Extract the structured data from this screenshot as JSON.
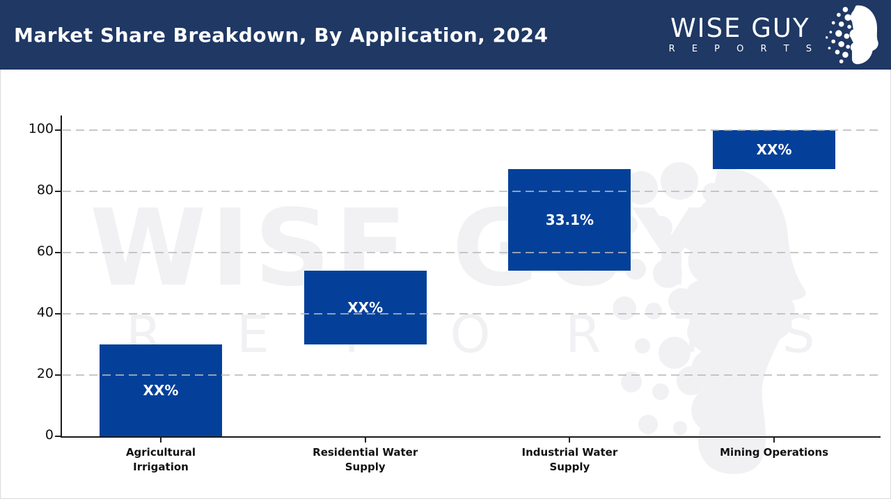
{
  "header": {
    "title": "Market Share Breakdown, By Application, 2024",
    "bg_color": "#1f3864",
    "logo": {
      "line1": "WISE GUY",
      "line2": "R E P O R T S"
    }
  },
  "watermark": {
    "line1": "WISE GUY",
    "line2": "R E P O R T S"
  },
  "chart_data": {
    "type": "bar",
    "subtype": "floating_waterfall_segments",
    "title": "Market Share Breakdown, By Application, 2024",
    "categories": [
      "Agricultural Irrigation",
      "Residential Water Supply",
      "Industrial Water Supply",
      "Mining Operations"
    ],
    "category_label_lines": [
      [
        "Agricultural",
        "Irrigation"
      ],
      [
        "Residential Water",
        "Supply"
      ],
      [
        "Industrial Water",
        "Supply"
      ],
      [
        "Mining Operations"
      ]
    ],
    "segments": [
      {
        "category": "Agricultural Irrigation",
        "start": 0,
        "end": 30,
        "label": "XX%"
      },
      {
        "category": "Residential Water Supply",
        "start": 30,
        "end": 54.2,
        "label": "XX%"
      },
      {
        "category": "Industrial Water Supply",
        "start": 54.2,
        "end": 87.3,
        "label": "33.1%"
      },
      {
        "category": "Mining Operations",
        "start": 87.3,
        "end": 100,
        "label": "XX%"
      }
    ],
    "xlabel": "",
    "ylabel": "",
    "ylim": [
      0,
      100
    ],
    "yticks": [
      0,
      20,
      40,
      60,
      80,
      100
    ],
    "grid": {
      "axis": "y",
      "style": "dashed",
      "color": "#bbbbbb",
      "over_bars": true
    },
    "legend": "none",
    "bar_color": "#04409a",
    "bar_label_color": "#ffffff",
    "axis_color": "#1a1a1a"
  }
}
